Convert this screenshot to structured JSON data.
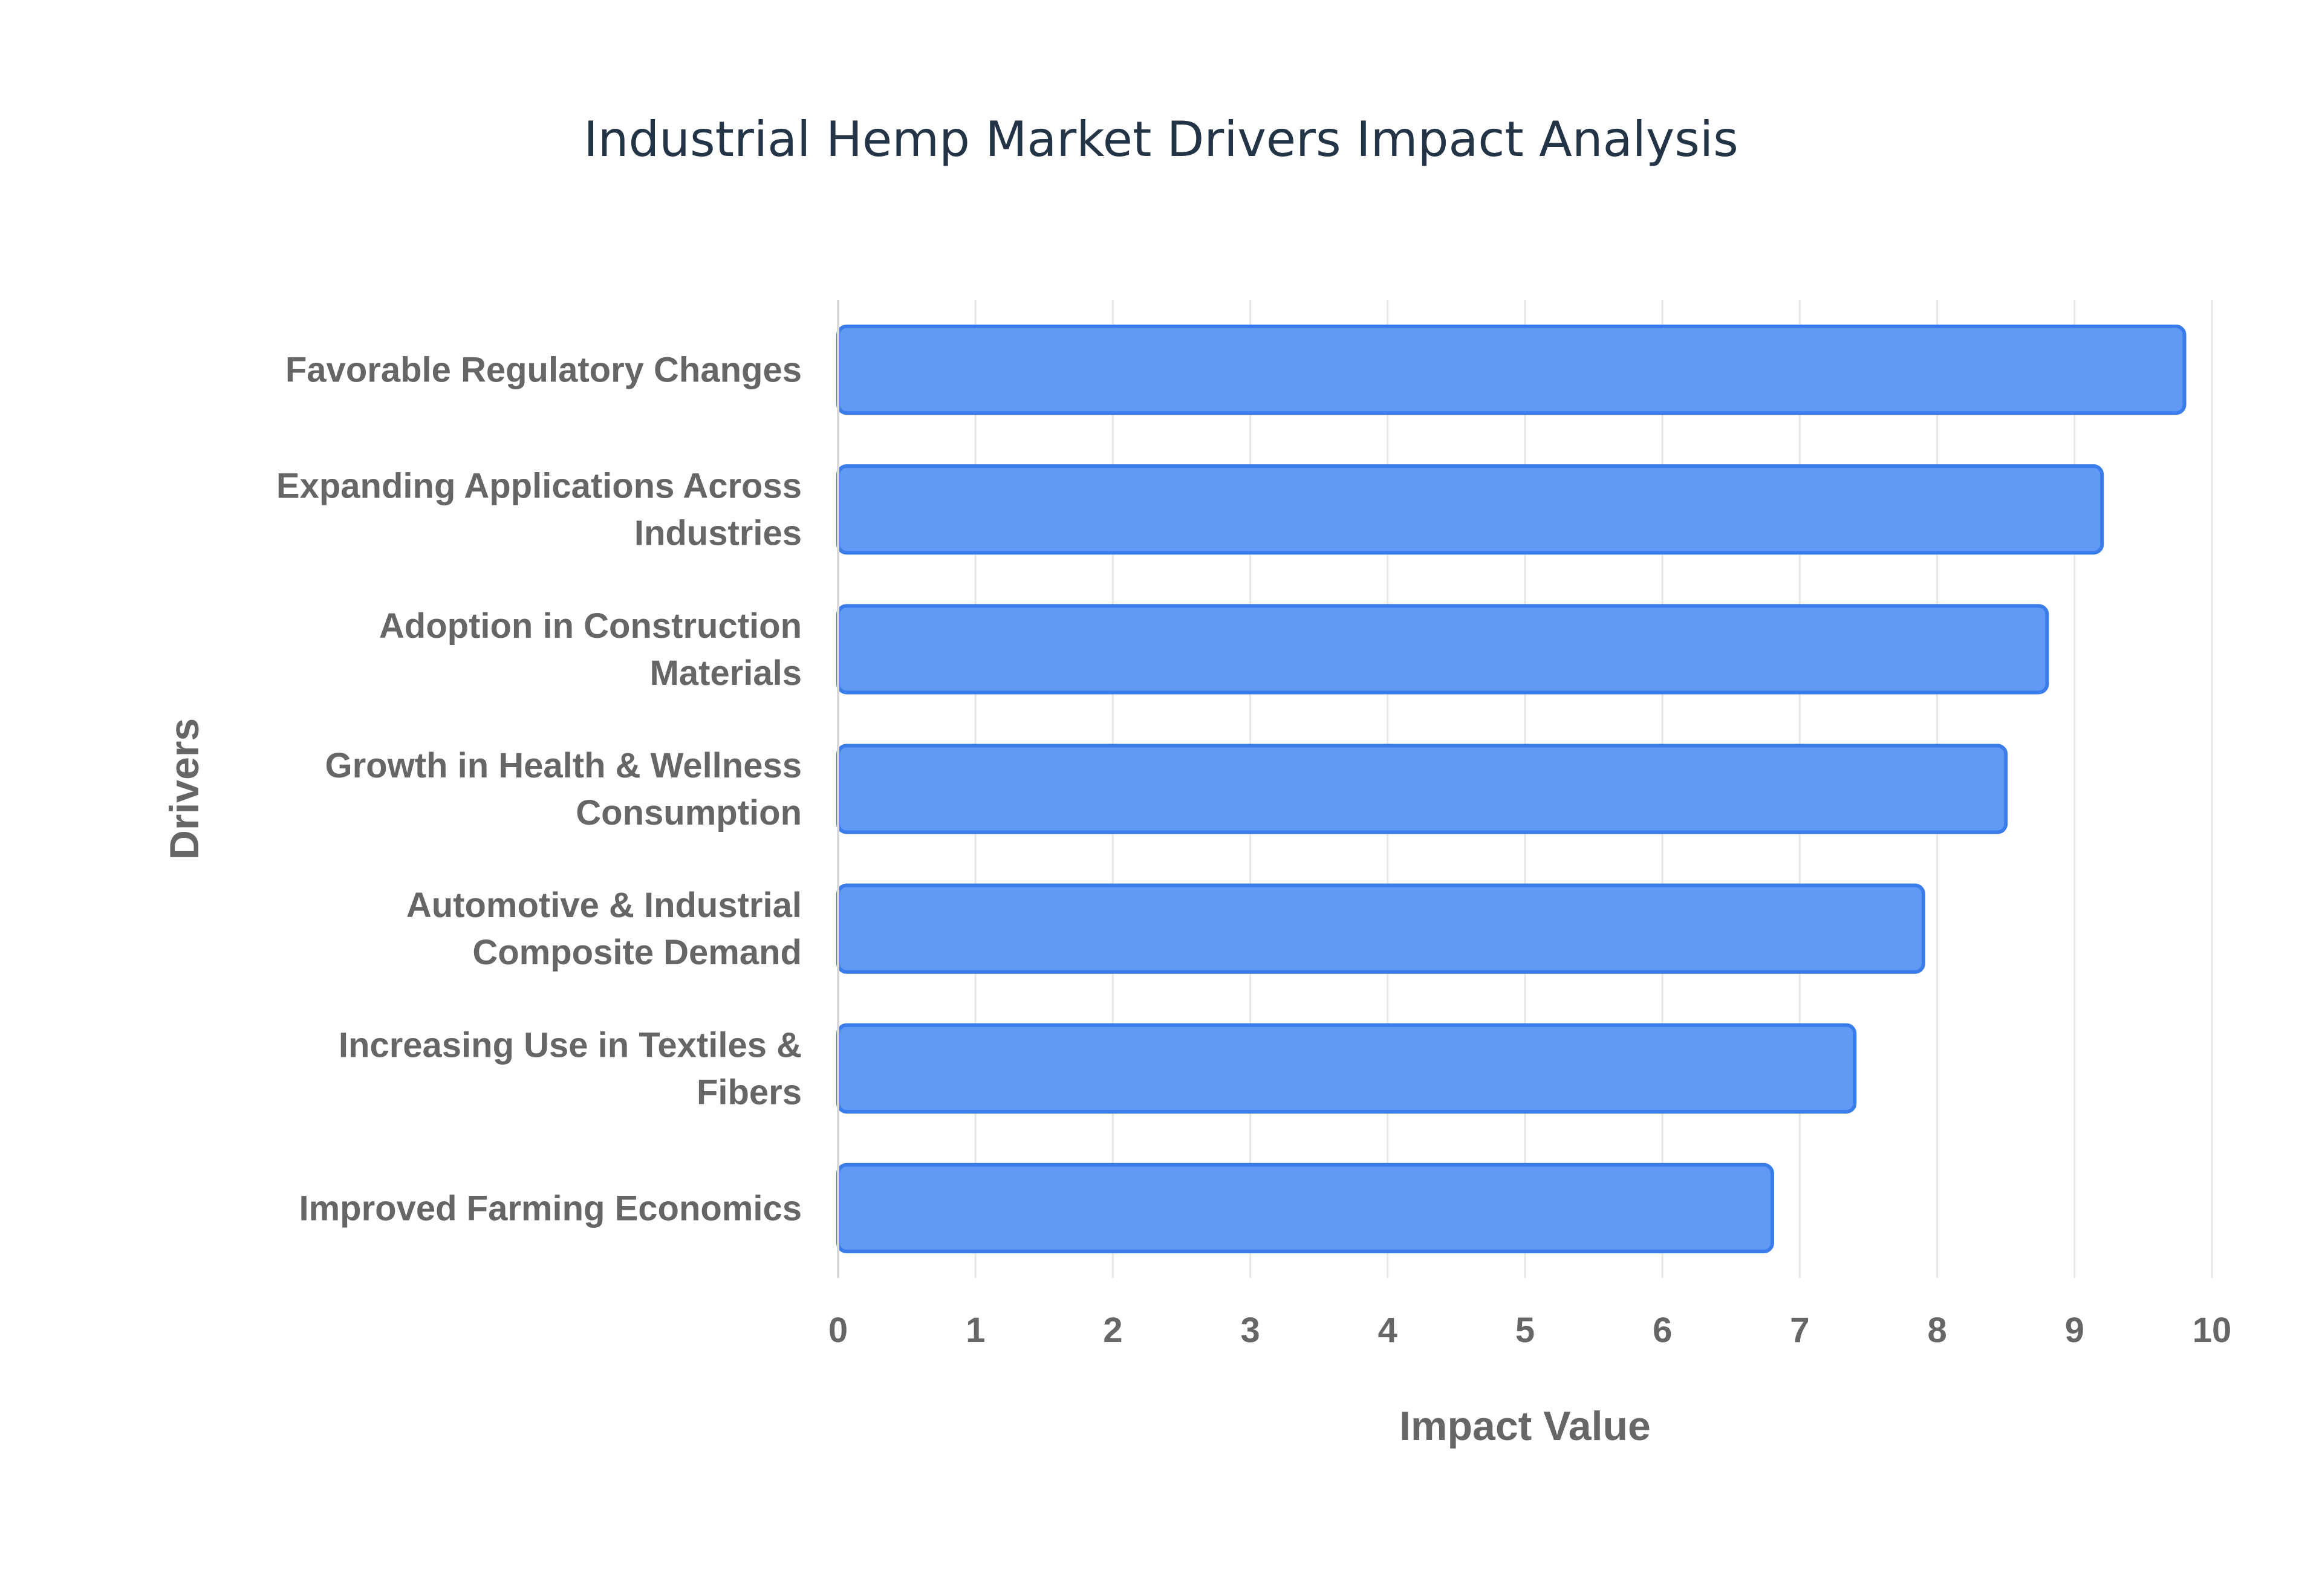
{
  "chart_data": {
    "type": "bar",
    "orientation": "horizontal",
    "title": "Industrial Hemp Market Drivers Impact Analysis",
    "xlabel": "Impact Value",
    "ylabel": "Drivers",
    "categories": [
      "Favorable Regulatory Changes",
      "Expanding Applications Across Industries",
      "Adoption in Construction Materials",
      "Growth in Health & Wellness Consumption",
      "Automotive & Industrial Composite Demand",
      "Increasing Use in Textiles & Fibers",
      "Improved Farming Economics"
    ],
    "category_lines": [
      [
        "Favorable Regulatory Changes"
      ],
      [
        "Expanding Applications Across",
        "Industries"
      ],
      [
        "Adoption in Construction",
        "Materials"
      ],
      [
        "Growth in Health & Wellness",
        "Consumption"
      ],
      [
        "Automotive & Industrial",
        "Composite Demand"
      ],
      [
        "Increasing Use in Textiles &",
        "Fibers"
      ],
      [
        "Improved Farming Economics"
      ]
    ],
    "values": [
      9.8,
      9.2,
      8.8,
      8.5,
      7.9,
      7.4,
      6.8
    ],
    "xlim": [
      0,
      10
    ],
    "xticks": [
      "0",
      "1",
      "2",
      "3",
      "4",
      "5",
      "6",
      "7",
      "8",
      "9",
      "10"
    ],
    "grid": true,
    "colors": {
      "bar_fill": "#6199f5",
      "bar_stroke": "#3b7ceb"
    }
  }
}
